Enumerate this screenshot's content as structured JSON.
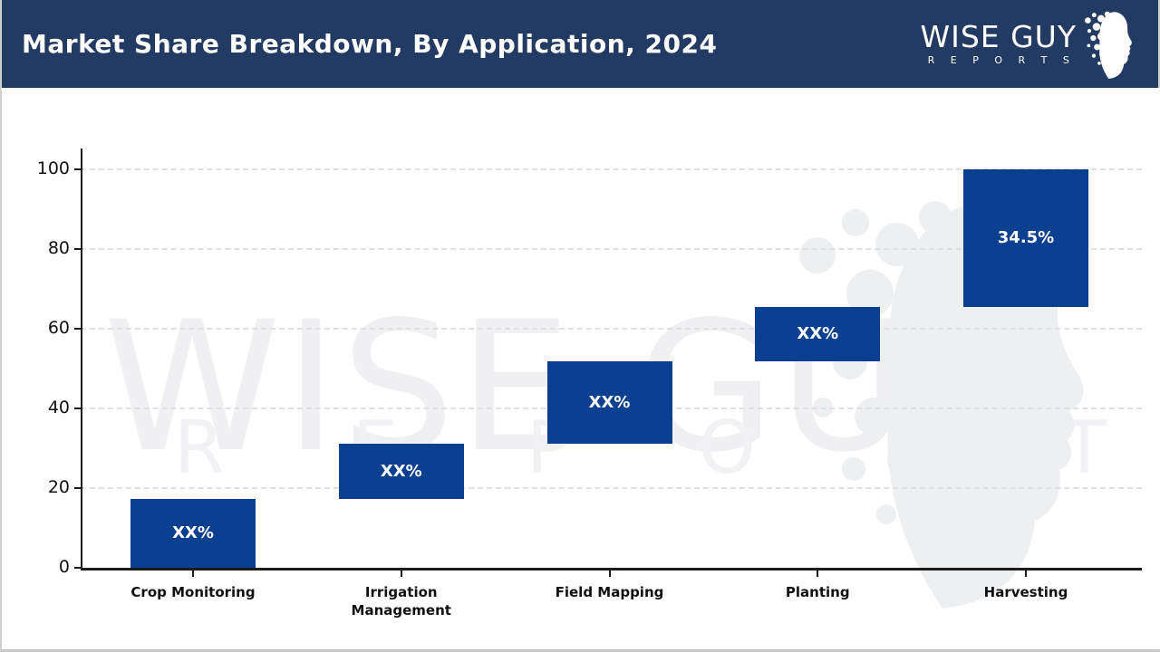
{
  "page": {
    "header": {
      "title": "Market Share Breakdown, By Application, 2024",
      "bg_color": "#233a63",
      "logo_line1": "WISE GUY",
      "logo_line2": "R E P O R T S"
    },
    "watermark": {
      "line1": "WISE GUY",
      "line2": "R E P O R T S"
    }
  },
  "chart_data": {
    "type": "bar",
    "subtype": "floating-waterfall",
    "title": "Market Share Breakdown, By Application, 2024",
    "categories": [
      "Crop Monitoring",
      "Irrigation Management",
      "Field Mapping",
      "Planting",
      "Harvesting"
    ],
    "segments": [
      {
        "category": "Crop Monitoring",
        "start": 0,
        "end": 17.3,
        "label": "XX%"
      },
      {
        "category": "Irrigation Management",
        "start": 17.3,
        "end": 31.1,
        "label": "XX%"
      },
      {
        "category": "Field Mapping",
        "start": 31.1,
        "end": 51.8,
        "label": "XX%"
      },
      {
        "category": "Planting",
        "start": 51.8,
        "end": 65.5,
        "label": "XX%"
      },
      {
        "category": "Harvesting",
        "start": 65.5,
        "end": 100,
        "label": "34.5%"
      }
    ],
    "bar_color": "#0b3f8f",
    "bar_label_color": "#ffffff",
    "ylim": [
      0,
      100
    ],
    "yticks": [
      0,
      20,
      40,
      60,
      80,
      100
    ],
    "xlabel": "",
    "ylabel": "",
    "grid": "horizontal-dashed",
    "legend": "none"
  }
}
